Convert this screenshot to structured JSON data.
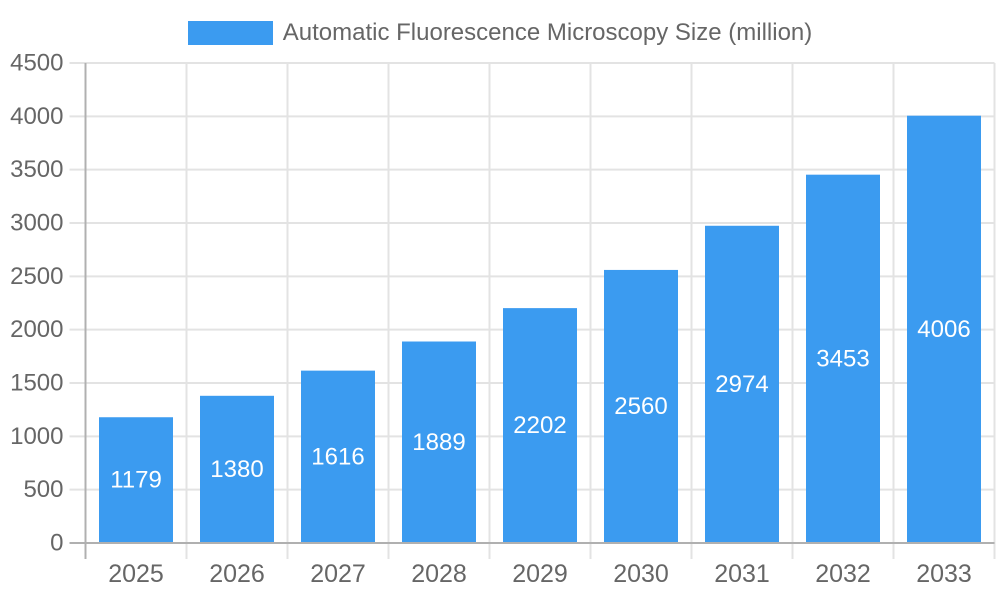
{
  "legend": {
    "label": "Automatic Fluorescence Microscopy Size (million)",
    "swatch_color": "#3b9bf0"
  },
  "chart_data": {
    "type": "bar",
    "title": "Automatic Fluorescence Microscopy Size (million)",
    "categories": [
      "2025",
      "2026",
      "2027",
      "2028",
      "2029",
      "2030",
      "2031",
      "2032",
      "2033"
    ],
    "series": [
      {
        "name": "Automatic Fluorescence Microscopy Size (million)",
        "values": [
          1179,
          1380,
          1616,
          1889,
          2202,
          2560,
          2974,
          3453,
          4006
        ],
        "color": "#3b9bf0"
      }
    ],
    "xlabel": "",
    "ylabel": "",
    "ylim": [
      0,
      4500
    ],
    "y_ticks": [
      0,
      500,
      1000,
      1500,
      2000,
      2500,
      3000,
      3500,
      4000,
      4500
    ],
    "grid": true,
    "legend_position": "top",
    "value_labels": "inside-center",
    "colors": {
      "bar": "#3b9bf0",
      "value_label": "#ffffff",
      "axis": "#b0b0b0",
      "grid": "#e3e3e3",
      "text": "#666666"
    }
  }
}
